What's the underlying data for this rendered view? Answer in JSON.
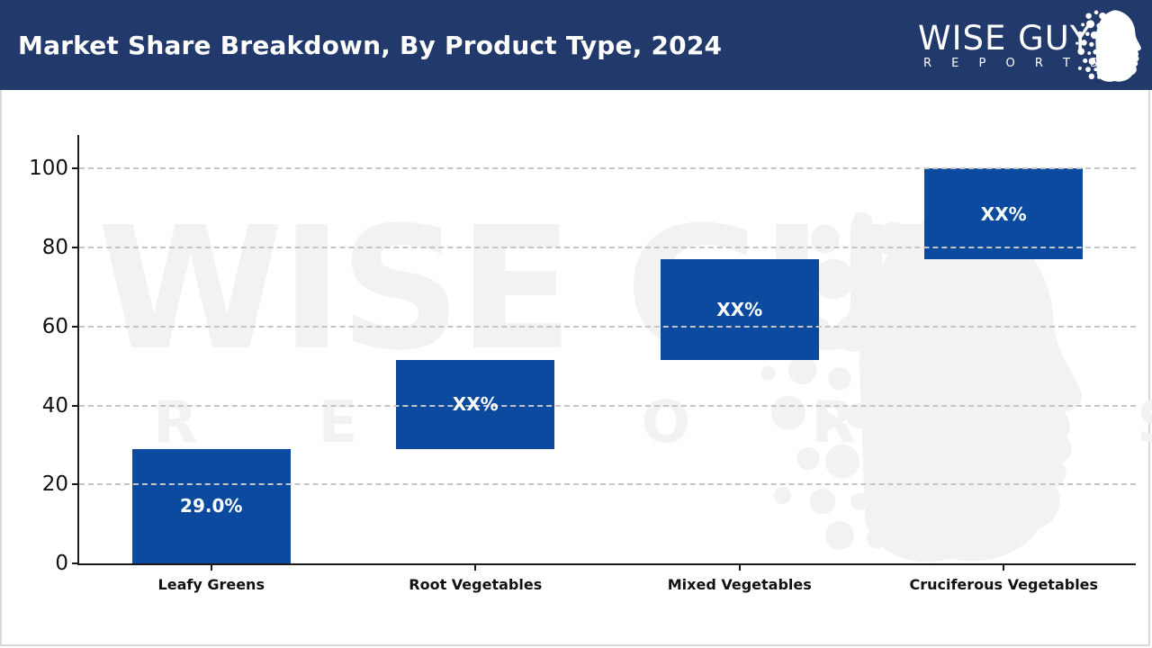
{
  "header": {
    "title": "Market Share Breakdown, By Product Type, 2024",
    "bg_color": "#21396b",
    "logo": {
      "line1": "WISE GUY",
      "line2": "R E P O R T S"
    }
  },
  "watermark": {
    "line1": "WISE GUY",
    "line2": "R E P O R T S"
  },
  "chart_data": {
    "type": "bar",
    "subtype": "waterfall",
    "title": "Market Share Breakdown, By Product Type, 2024",
    "categories": [
      "Leafy Greens",
      "Root Vegetables",
      "Mixed Vegetables",
      "Cruciferous Vegetables"
    ],
    "segments": [
      {
        "category": "Leafy Greens",
        "start": 0,
        "end": 29.0
      },
      {
        "category": "Root Vegetables",
        "start": 29.0,
        "end": 51.5
      },
      {
        "category": "Mixed Vegetables",
        "start": 51.5,
        "end": 77.0
      },
      {
        "category": "Cruciferous Vegetables",
        "start": 77.0,
        "end": 100.0
      }
    ],
    "bar_labels": [
      "29.0%",
      "XX%",
      "XX%",
      "XX%"
    ],
    "yticks": [
      0,
      20,
      40,
      60,
      80,
      100
    ],
    "ylim": [
      0,
      108.5
    ],
    "xlabel": "",
    "ylabel": "",
    "grid": true,
    "gridline_style": "dashed",
    "bar_color": "#0b4a9e",
    "bar_label_color": "#ffffff",
    "axis_color": "#1a1a1a",
    "gridline_color": "#c5c5c5"
  }
}
